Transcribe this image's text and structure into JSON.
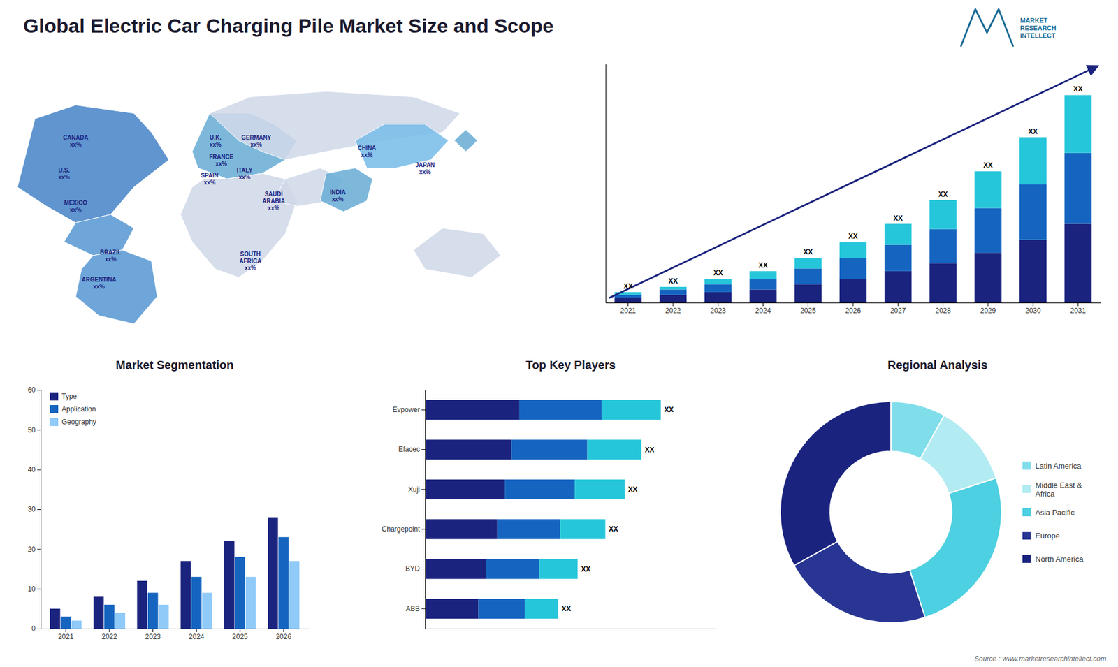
{
  "chart_data": [
    {
      "type": "map",
      "title": "Global Electric Car Charging Pile Market Size and Scope",
      "labels": [
        "CANADA\nxx%",
        "U.S.\nxx%",
        "MEXICO\nxx%",
        "BRAZIL\nxx%",
        "ARGENTINA\nxx%",
        "U.K.\nxx%",
        "FRANCE\nxx%",
        "SPAIN\nxx%",
        "GERMANY\nxx%",
        "ITALY\nxx%",
        "SAUDI\nARABIA\nxx%",
        "SOUTH\nAFRICA\nxx%",
        "CHINA\nxx%",
        "INDIA\nxx%",
        "JAPAN\nxx%"
      ],
      "annotations": [
        "Source : www.marketresearchintellect.com",
        "MARKET\nRESEARCH\nINTELLECT"
      ]
    },
    {
      "type": "bar",
      "stacked": true,
      "categories": [
        "2021",
        "2022",
        "2023",
        "2024",
        "2025",
        "2026",
        "2027",
        "2028",
        "2029",
        "2030",
        "2031"
      ],
      "series": [
        {
          "color": "#1a237e",
          "values": [
            2,
            3,
            4,
            5,
            7,
            9,
            12,
            15,
            19,
            24,
            30
          ]
        },
        {
          "color": "#1565c0",
          "values": [
            1,
            2,
            3,
            4,
            6,
            8,
            10,
            13,
            17,
            21,
            27
          ]
        },
        {
          "color": "#26c6da",
          "values": [
            1,
            1,
            2,
            3,
            4,
            6,
            8,
            11,
            14,
            18,
            22
          ]
        }
      ],
      "ylim": [
        0,
        90.85
      ],
      "value_labels": [
        "XX",
        "XX",
        "XX",
        "XX",
        "XX",
        "XX",
        "XX",
        "XX",
        "XX",
        "XX",
        "XX"
      ],
      "tick_labels": "x",
      "grid": false
    },
    {
      "type": "bar",
      "title": "Market Segmentation",
      "categories": [
        "2021",
        "2022",
        "2023",
        "2024",
        "2025",
        "2026"
      ],
      "series": [
        {
          "name": "Type",
          "color": "#1a237e",
          "values": [
            5,
            8,
            12,
            17,
            22,
            28
          ]
        },
        {
          "name": "Application",
          "color": "#1565c0",
          "values": [
            3,
            6,
            9,
            13,
            18,
            23
          ]
        },
        {
          "name": "Geography",
          "color": "#90caf9",
          "values": [
            2,
            4,
            6,
            9,
            13,
            17
          ]
        }
      ],
      "ylim": [
        0,
        60
      ],
      "yticks": [
        0,
        10,
        20,
        30,
        40,
        50,
        60
      ],
      "legend": "upper left",
      "grid": false
    },
    {
      "type": "bar",
      "title": "Top Key Players",
      "orientation": "horizontal",
      "stacked": true,
      "categories": [
        "Evpower",
        "Efacec",
        "Xuji",
        "Chargepoint",
        "BYD",
        "ABB"
      ],
      "series": [
        {
          "color": "#1a237e",
          "values": [
            34,
            31.2,
            28.8,
            26,
            22,
            19.2
          ]
        },
        {
          "color": "#1565c0",
          "values": [
            29.75,
            27.3,
            25.2,
            22.75,
            19.25,
            16.8
          ]
        },
        {
          "color": "#26c6da",
          "values": [
            21.25,
            19.5,
            18,
            16.25,
            13.75,
            12
          ]
        }
      ],
      "xlim": [
        0,
        105
      ],
      "value_labels": [
        "XX",
        "XX",
        "XX",
        "XX",
        "XX",
        "XX"
      ],
      "tick_labels": "y",
      "grid": false
    },
    {
      "type": "donut",
      "title": "Regional Analysis",
      "categories": [
        "Latin America",
        "Middle East &\nAfrica",
        "Asia Pacific",
        "Europe",
        "North America"
      ],
      "values": [
        8,
        12,
        25,
        22,
        33
      ],
      "colors": [
        "#80deea",
        "#b2ebf2",
        "#4dd0e1",
        "#283593",
        "#1a237e"
      ],
      "legend": "right"
    }
  ]
}
